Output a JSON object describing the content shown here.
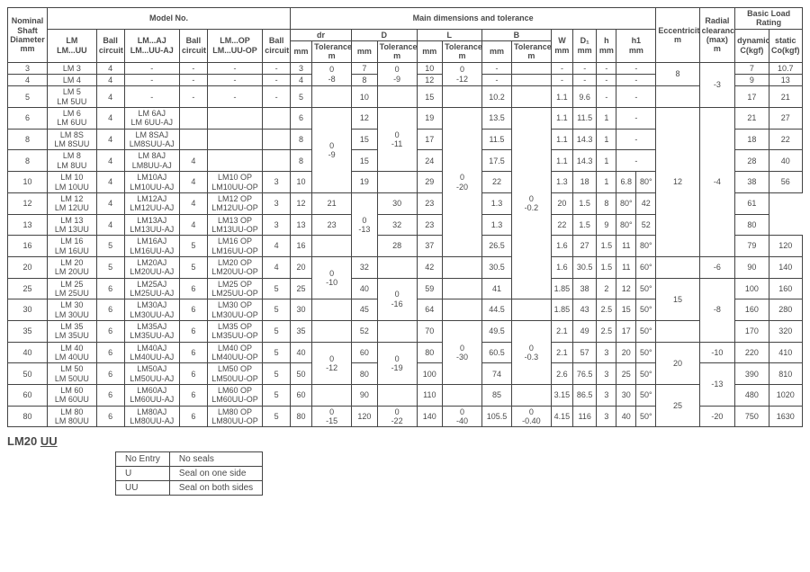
{
  "headers": {
    "nominal": "Nominal\nShaft\nDiameter\nmm",
    "modelNo": "Model No.",
    "lm": "LM\nLM...UU",
    "bc": "Ball\ncircuit",
    "lmaj": "LM...AJ\nLM...UU-AJ",
    "lmop": "LM...OP\nLM...UU-OP",
    "main": "Main dimensions and tolerance",
    "dr": "dr",
    "D": "D",
    "L": "L",
    "B": "B",
    "mm": "mm",
    "tol": "Tolerances\nm",
    "W": "W\nmm",
    "Dg": "D₁\nmm",
    "h": "h\nmm",
    "h1": "h1\nmm",
    "ecc": "Eccentricity\nm",
    "radial": "Radial\nclearance\n(max)\nm",
    "basic": "Basic Load\nRating",
    "dyn": "dynamic\nC(kgf)",
    "sta": "static\nCo(kgf)"
  },
  "tol": {
    "dr1": "0\n-8",
    "dr2": "0\n-9",
    "dr3": "0\n-10",
    "dr4": "0\n-12",
    "dr5": "0\n-15",
    "D1": "0\n-9",
    "D2": "0\n-11",
    "D3": "0\n-13",
    "D4": "0\n-16",
    "D5": "0\n-19",
    "D6": "0\n-22",
    "L1": "0\n-12",
    "L2": "0\n-20",
    "L3": "0\n-30",
    "L4": "0\n-40",
    "B1": "0\n-0.2",
    "B2": "0\n-0.3",
    "B3": "0\n-0.40"
  },
  "ecc": {
    "e1": "8",
    "e2": "12",
    "e3": "15",
    "e4": "20",
    "e5": "25"
  },
  "rad": {
    "r1": "-3",
    "r2": "-4",
    "r3": "-6",
    "r4": "-8",
    "r5": "-10",
    "r6": "-13",
    "r7": "-20"
  },
  "rows": [
    {
      "nom": "3",
      "lm": "LM 3",
      "bc1": "4",
      "aj": "-",
      "bc2": "-",
      "op": "-",
      "bc3": "-",
      "dr": "3",
      "D": "7",
      "L": "10",
      "B": "-",
      "W": "-",
      "Dg": "-",
      "h": "-",
      "h1": "-",
      "dyn": "7",
      "sta": "10.7"
    },
    {
      "nom": "4",
      "lm": "LM 4",
      "bc1": "4",
      "aj": "-",
      "bc2": "-",
      "op": "-",
      "bc3": "-",
      "dr": "4",
      "D": "8",
      "L": "12",
      "B": "-",
      "W": "-",
      "Dg": "-",
      "h": "-",
      "h1": "-",
      "dyn": "9",
      "sta": "13"
    },
    {
      "nom": "5",
      "lm": "LM 5\nLM 5UU",
      "bc1": "4",
      "aj": "-",
      "bc2": "-",
      "op": "-",
      "bc3": "-",
      "dr": "5",
      "D": "10",
      "L": "15",
      "B": "10.2",
      "W": "1.1",
      "Dg": "9.6",
      "h": "-",
      "h1": "-",
      "dyn": "17",
      "sta": "21"
    },
    {
      "nom": "6",
      "lm": "LM 6\nLM 6UU",
      "bc1": "4",
      "aj": "LM 6AJ\nLM 6UU-AJ",
      "bc2": "",
      "op": "",
      "bc3": "",
      "dr": "6",
      "D": "12",
      "L": "19",
      "B": "13.5",
      "W": "1.1",
      "Dg": "11.5",
      "h": "1",
      "h1": "-",
      "dyn": "21",
      "sta": "27"
    },
    {
      "nom": "8",
      "lm": "LM 8S\nLM 8SUU",
      "bc1": "4",
      "aj": "LM 8SAJ\nLM8SUU-AJ",
      "bc2": "",
      "op": "",
      "bc3": "",
      "dr": "8",
      "D": "15",
      "L": "17",
      "B": "11.5",
      "W": "1.1",
      "Dg": "14.3",
      "h": "1",
      "h1": "-",
      "dyn": "18",
      "sta": "22"
    },
    {
      "nom": "8",
      "lm": "LM 8\nLM 8UU",
      "bc1": "4",
      "aj": "LM 8AJ\nLM8UU-AJ",
      "bc2": "4",
      "op": "",
      "bc3": "",
      "dr": "8",
      "D": "15",
      "L": "24",
      "B": "17.5",
      "W": "1.1",
      "Dg": "14.3",
      "h": "1",
      "h1": "-",
      "dyn": "28",
      "sta": "40"
    },
    {
      "nom": "10",
      "lm": "LM 10\nLM 10UU",
      "bc1": "4",
      "aj": "LM10AJ\nLM10UU-AJ",
      "bc2": "4",
      "op": "LM10 OP\nLM10UU-OP",
      "bc3": "3",
      "dr": "10",
      "D": "19",
      "L": "29",
      "B": "22",
      "W": "1.3",
      "Dg": "18",
      "h": "1",
      "h1": "6.8",
      "deg": "80°",
      "dyn": "38",
      "sta": "56"
    },
    {
      "nom": "12",
      "lm": "LM 12\nLM 12UU",
      "bc1": "4",
      "aj": "LM12AJ\nLM12UU-AJ",
      "bc2": "4",
      "op": "LM12 OP\nLM12UU-OP",
      "bc3": "3",
      "dr": "12",
      "D": "21",
      "L": "30",
      "B": "23",
      "W": "1.3",
      "Dg": "20",
      "h": "1.5",
      "h1": "8",
      "deg": "80°",
      "dyn": "42",
      "sta": "61"
    },
    {
      "nom": "13",
      "lm": "LM 13\nLM 13UU",
      "bc1": "4",
      "aj": "LM13AJ\nLM13UU-AJ",
      "bc2": "4",
      "op": "LM13 OP\nLM13UU-OP",
      "bc3": "3",
      "dr": "13",
      "D": "23",
      "L": "32",
      "B": "23",
      "W": "1.3",
      "Dg": "22",
      "h": "1.5",
      "h1": "9",
      "deg": "80°",
      "dyn": "52",
      "sta": "80"
    },
    {
      "nom": "16",
      "lm": "LM 16\nLM 16UU",
      "bc1": "5",
      "aj": "LM16AJ\nLM16UU-AJ",
      "bc2": "5",
      "op": "LM16 OP\nLM16UU-OP",
      "bc3": "4",
      "dr": "16",
      "D": "28",
      "L": "37",
      "B": "26.5",
      "W": "1.6",
      "Dg": "27",
      "h": "1.5",
      "h1": "11",
      "deg": "80°",
      "dyn": "79",
      "sta": "120"
    },
    {
      "nom": "20",
      "lm": "LM 20\nLM 20UU",
      "bc1": "5",
      "aj": "LM20AJ\nLM20UU-AJ",
      "bc2": "5",
      "op": "LM20 OP\nLM20UU-OP",
      "bc3": "4",
      "dr": "20",
      "D": "32",
      "L": "42",
      "B": "30.5",
      "W": "1.6",
      "Dg": "30.5",
      "h": "1.5",
      "h1": "11",
      "deg": "60°",
      "dyn": "90",
      "sta": "140"
    },
    {
      "nom": "25",
      "lm": "LM 25\nLM 25UU",
      "bc1": "6",
      "aj": "LM25AJ\nLM25UU-AJ",
      "bc2": "6",
      "op": "LM25 OP\nLM25UU-OP",
      "bc3": "5",
      "dr": "25",
      "D": "40",
      "L": "59",
      "B": "41",
      "W": "1.85",
      "Dg": "38",
      "h": "2",
      "h1": "12",
      "deg": "50°",
      "dyn": "100",
      "sta": "160"
    },
    {
      "nom": "30",
      "lm": "LM 30\nLM 30UU",
      "bc1": "6",
      "aj": "LM30AJ\nLM30UU-AJ",
      "bc2": "6",
      "op": "LM30 OP\nLM30UU-OP",
      "bc3": "5",
      "dr": "30",
      "D": "45",
      "L": "64",
      "B": "44.5",
      "W": "1.85",
      "Dg": "43",
      "h": "2.5",
      "h1": "15",
      "deg": "50°",
      "dyn": "160",
      "sta": "280"
    },
    {
      "nom": "35",
      "lm": "LM 35\nLM 35UU",
      "bc1": "6",
      "aj": "LM35AJ\nLM35UU-AJ",
      "bc2": "6",
      "op": "LM35 OP\nLM35UU-OP",
      "bc3": "5",
      "dr": "35",
      "D": "52",
      "L": "70",
      "B": "49.5",
      "W": "2.1",
      "Dg": "49",
      "h": "2.5",
      "h1": "17",
      "deg": "50°",
      "dyn": "170",
      "sta": "320"
    },
    {
      "nom": "40",
      "lm": "LM 40\nLM 40UU",
      "bc1": "6",
      "aj": "LM40AJ\nLM40UU-AJ",
      "bc2": "6",
      "op": "LM40 OP\nLM40UU-OP",
      "bc3": "5",
      "dr": "40",
      "D": "60",
      "L": "80",
      "B": "60.5",
      "W": "2.1",
      "Dg": "57",
      "h": "3",
      "h1": "20",
      "deg": "50°",
      "dyn": "220",
      "sta": "410"
    },
    {
      "nom": "50",
      "lm": "LM 50\nLM 50UU",
      "bc1": "6",
      "aj": "LM50AJ\nLM50UU-AJ",
      "bc2": "6",
      "op": "LM50 OP\nLM50UU-OP",
      "bc3": "5",
      "dr": "50",
      "D": "80",
      "L": "100",
      "B": "74",
      "W": "2.6",
      "Dg": "76.5",
      "h": "3",
      "h1": "25",
      "deg": "50°",
      "dyn": "390",
      "sta": "810"
    },
    {
      "nom": "60",
      "lm": "LM 60\nLM 60UU",
      "bc1": "6",
      "aj": "LM60AJ\nLM60UU-AJ",
      "bc2": "6",
      "op": "LM60 OP\nLM60UU-OP",
      "bc3": "5",
      "dr": "60",
      "D": "90",
      "L": "110",
      "B": "85",
      "W": "3.15",
      "Dg": "86.5",
      "h": "3",
      "h1": "30",
      "deg": "50°",
      "dyn": "480",
      "sta": "1020"
    },
    {
      "nom": "80",
      "lm": "LM 80\nLM 80UU",
      "bc1": "6",
      "aj": "LM80AJ\nLM80UU-AJ",
      "bc2": "6",
      "op": "LM80 OP\nLM80UU-OP",
      "bc3": "5",
      "dr": "80",
      "D": "120",
      "L": "140",
      "B": "105.5",
      "W": "4.15",
      "Dg": "116",
      "h": "3",
      "h1": "40",
      "deg": "50°",
      "dyn": "750",
      "sta": "1630"
    }
  ],
  "footer": {
    "label": "LM20 ",
    "uu": "UU"
  },
  "legend": [
    [
      "No Entry",
      "No seals"
    ],
    [
      "U",
      "Seal on one side"
    ],
    [
      "UU",
      "Seal on both sides"
    ]
  ]
}
